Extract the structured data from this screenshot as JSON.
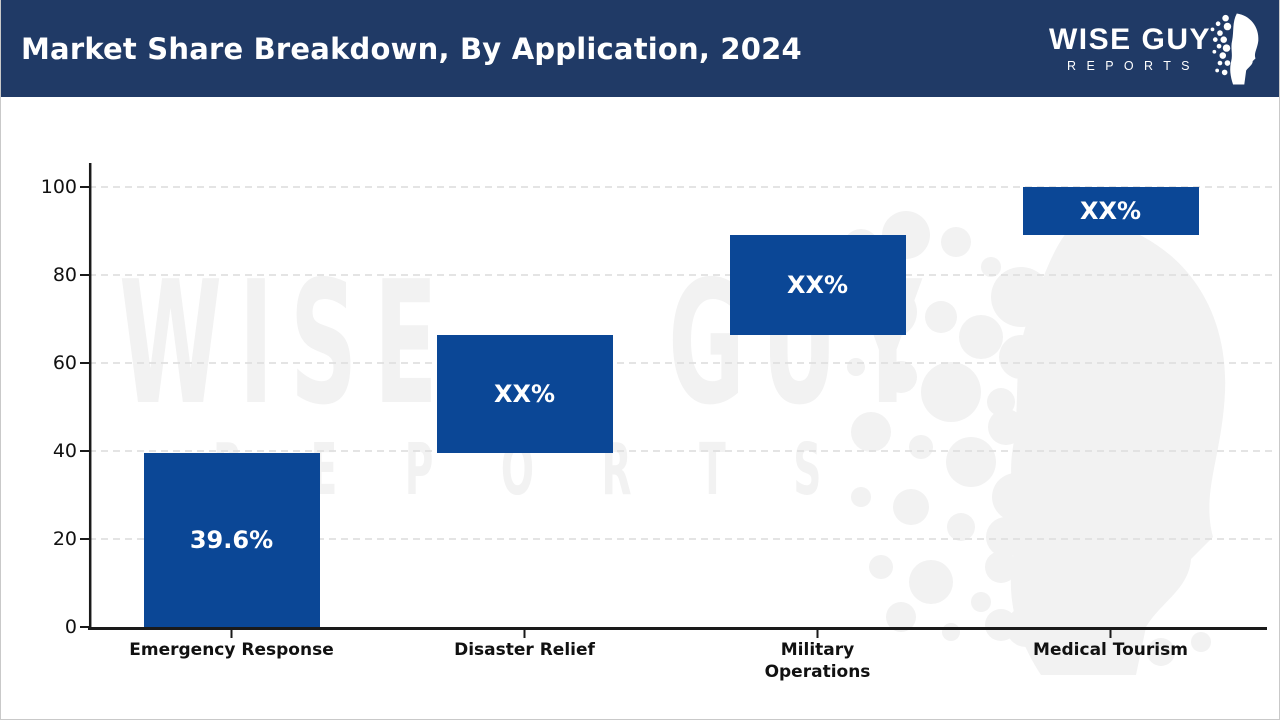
{
  "header": {
    "title": "Market Share Breakdown, By Application, 2024",
    "logo": {
      "wordmark": "WISE GUY",
      "subtext": "R E P O R T S"
    }
  },
  "watermark": {
    "line1": "WISE GUY.",
    "line2": "R E P O R T S"
  },
  "chart_data": {
    "type": "bar",
    "subtype": "floating-segment-waterfall",
    "title": "Market Share Breakdown, By Application, 2024",
    "categories": [
      "Emergency Response",
      "Disaster Relief",
      "Military\nOperations",
      "Medical Tourism"
    ],
    "segments": [
      {
        "category": "Emergency Response",
        "from": 0,
        "to": 39.6,
        "label": "39.6%"
      },
      {
        "category": "Disaster Relief",
        "from": 39.6,
        "to": 66.4,
        "label": "XX%"
      },
      {
        "category": "Military\nOperations",
        "from": 66.4,
        "to": 89.1,
        "label": "XX%"
      },
      {
        "category": "Medical Tourism",
        "from": 89.1,
        "to": 100,
        "label": "XX%"
      }
    ],
    "xlabel": "",
    "ylabel": "",
    "ylim": [
      0,
      105
    ],
    "yticks": [
      0,
      20,
      40,
      60,
      80,
      100
    ],
    "grid": "horizontal-dashed",
    "legend": "none",
    "bar_color": "#0b4796",
    "bar_label_color": "#ffffff"
  },
  "colors": {
    "header_bg": "#203a66",
    "bar": "#0b4796",
    "grid": "#dcdcdc",
    "axis": "#1a1a1a",
    "watermark": "#f2f2f2",
    "page_bg": "#ffffff"
  }
}
